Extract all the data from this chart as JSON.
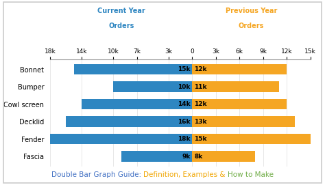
{
  "categories": [
    "Bonnet",
    "Bumper",
    "Cowl screen",
    "Decklid",
    "Fender",
    "Fascia"
  ],
  "current_year": [
    15,
    10,
    14,
    16,
    18,
    9
  ],
  "previous_year": [
    12,
    11,
    12,
    13,
    15,
    8
  ],
  "blue_color": "#2E86C1",
  "orange_color": "#F5A623",
  "legend_current_label": "Current Year\nOrders",
  "legend_previous_label": "Previous Year\nOrders",
  "legend_current_color": "#2E86C1",
  "legend_previous_color": "#F5A623",
  "tick_positions": [
    -18,
    -14,
    -10,
    -7,
    -3,
    0,
    3,
    6,
    9,
    12,
    15
  ],
  "tick_labels": [
    "18k",
    "14k",
    "10k",
    "7k",
    "3k",
    "0",
    "3k",
    "6k",
    "9k",
    "12k",
    "15k"
  ],
  "xlim": [
    -18,
    15
  ],
  "bar_height": 0.6,
  "title_parts": [
    {
      "text": "Double Bar Graph Guide: ",
      "color": "#4472C4"
    },
    {
      "text": "Definition, Examples & ",
      "color": "#F0A500"
    },
    {
      "text": "How to Make",
      "color": "#70AD47"
    }
  ],
  "title_fontsize": 7.5,
  "axis_label_fontsize": 6.5,
  "category_fontsize": 7.0,
  "border_color": "#CCCCCC"
}
